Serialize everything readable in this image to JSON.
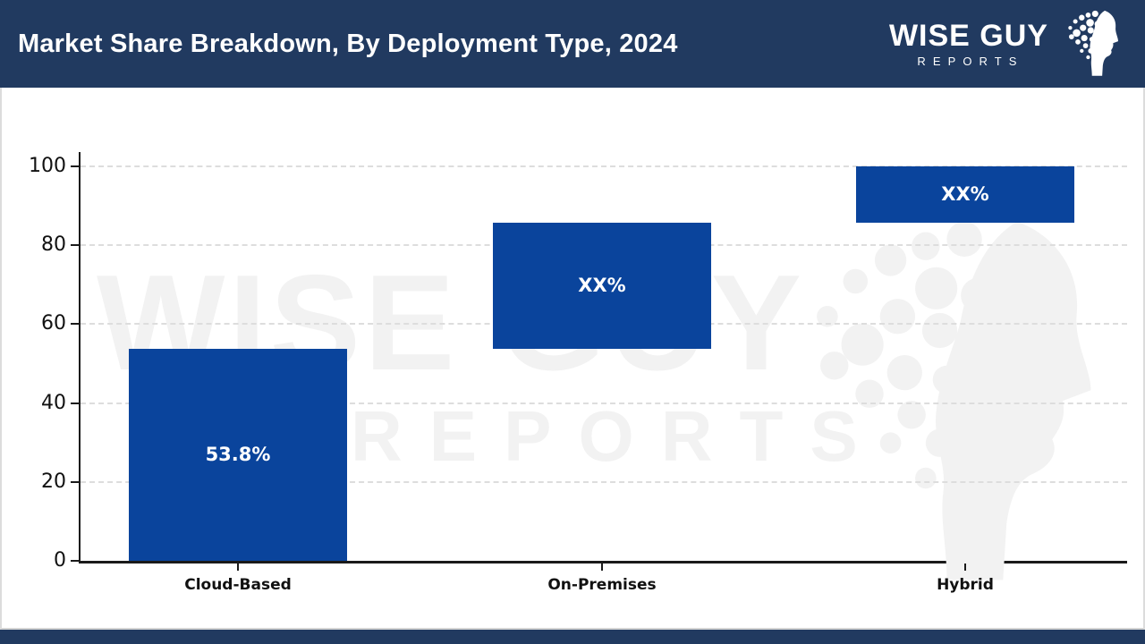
{
  "header": {
    "title": "Market Share Breakdown, By Deployment Type, 2024",
    "logo": {
      "line1": "WISE GUY",
      "line2": "REPORTS"
    }
  },
  "watermark": {
    "line1": "WISE GUY",
    "line2": "REPORTS"
  },
  "colors": {
    "header_bg": "#213A60",
    "footer_bg": "#213A60",
    "bar": "#0A449C",
    "bar_label": "#FFFFFF",
    "grid": "#DDDDDD",
    "axis": "#1A1A1A",
    "watermark": "#F2F2F2"
  },
  "chart_data": {
    "type": "bar",
    "subtype": "waterfall-floating-bars",
    "title": "Market Share Breakdown, By Deployment Type, 2024",
    "categories": [
      "Cloud-Based",
      "On-Premises",
      "Hybrid"
    ],
    "segments": [
      {
        "category": "Cloud-Based",
        "from": 0,
        "to": 53.8,
        "label": "53.8%"
      },
      {
        "category": "On-Premises",
        "from": 53.8,
        "to": 85.8,
        "label": "XX%"
      },
      {
        "category": "Hybrid",
        "from": 85.8,
        "to": 100,
        "label": "XX%"
      }
    ],
    "yticks": [
      0,
      20,
      40,
      60,
      80,
      100
    ],
    "ylim": [
      0,
      103.6
    ],
    "xlabel": "",
    "ylabel": "",
    "grid": "horizontal-dashed",
    "legend": null,
    "bar_width_fraction": 0.6
  }
}
